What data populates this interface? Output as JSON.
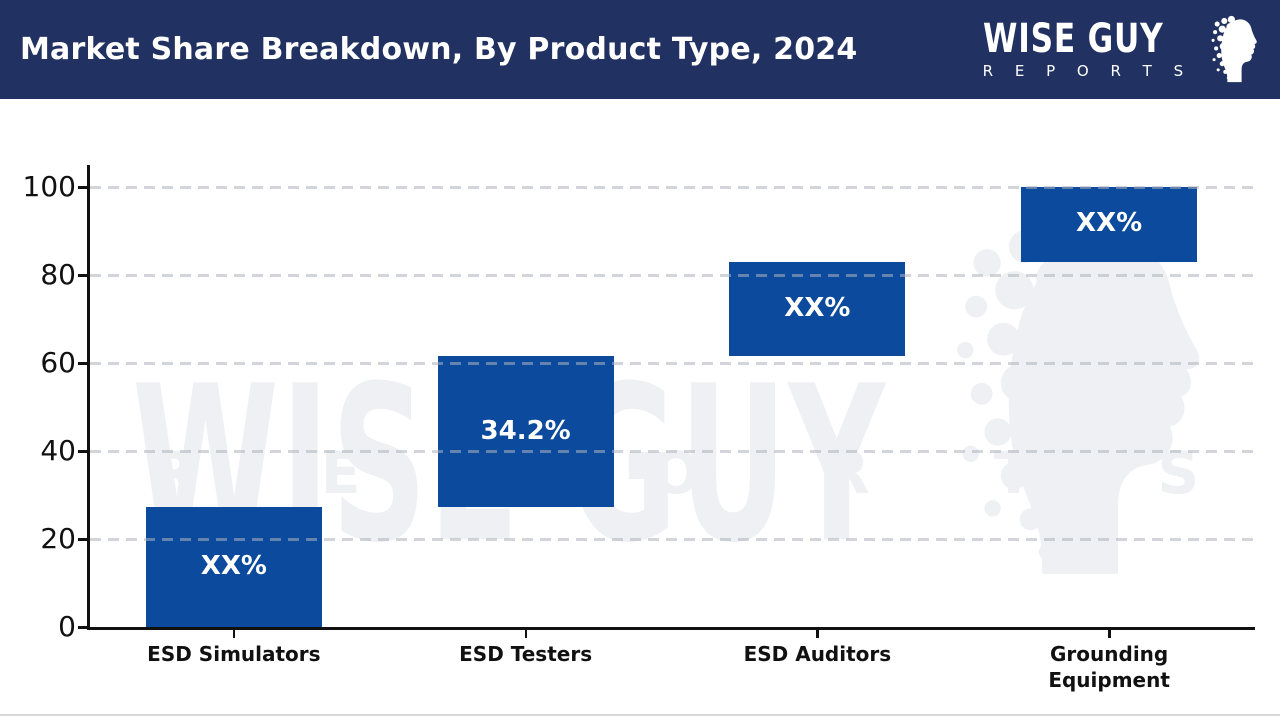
{
  "header": {
    "title": "Market Share Breakdown, By Product Type, 2024",
    "logo": {
      "wordmark": "WISE GUY",
      "subtext": "R E P O R T S"
    }
  },
  "watermark": {
    "wordmark": "WISE GUY",
    "subtext": "R E P O R T S"
  },
  "chart_data": {
    "type": "bar",
    "subtype": "waterfall",
    "title": "Market Share Breakdown, By Product Type, 2024",
    "categories": [
      "ESD Simulators",
      "ESD Testers",
      "ESD Auditors",
      "Grounding Equipment"
    ],
    "segments": [
      {
        "category": "ESD Simulators",
        "start": 0,
        "end": 27.3,
        "label": "XX%"
      },
      {
        "category": "ESD Testers",
        "start": 27.3,
        "end": 61.5,
        "label": "34.2%"
      },
      {
        "category": "ESD Auditors",
        "start": 61.5,
        "end": 83,
        "label": "XX%"
      },
      {
        "category": "Grounding Equipment",
        "start": 83,
        "end": 100,
        "label": "XX%"
      }
    ],
    "y_ticks": [
      0,
      20,
      40,
      60,
      80,
      100
    ],
    "ylim": [
      0,
      100
    ],
    "xlabel": "",
    "ylabel": "",
    "grid": "horizontal-dashed",
    "legend": "none",
    "bar_color": "#0c4a9d",
    "value_label_color": "#ffffff"
  },
  "colors": {
    "header_bg": "#213161",
    "header_text": "#ffffff",
    "bar": "#0c4a9d",
    "axis": "#111111",
    "watermark": "#eff0f3",
    "background": "#ffffff",
    "bottom_rule": "#d9d9d9"
  }
}
